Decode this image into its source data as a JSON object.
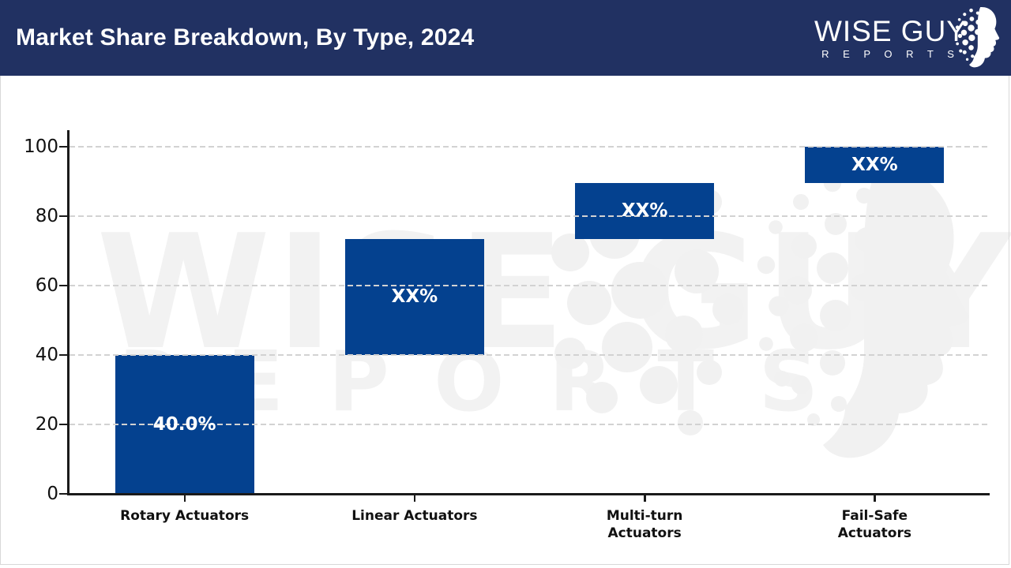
{
  "header": {
    "title": "Market Share Breakdown, By Type, 2024",
    "background_color": "#213162",
    "logo": {
      "name": "WISE GUY",
      "sub": "R E P O R T S"
    }
  },
  "watermark": {
    "line1": "WISE GUY",
    "line2": "R E P O R T S"
  },
  "chart_data": {
    "type": "bar",
    "variant": "waterfall",
    "title": "Market Share Breakdown, By Type, 2024",
    "categories": [
      "Rotary Actuators",
      "Linear Actuators",
      "Multi-turn Actuators",
      "Fail-Safe Actuators"
    ],
    "category_lines": [
      [
        "Rotary Actuators"
      ],
      [
        "Linear Actuators"
      ],
      [
        "Multi-turn",
        "Actuators"
      ],
      [
        "Fail-Safe",
        "Actuators"
      ]
    ],
    "segments": [
      {
        "category": "Rotary Actuators",
        "start": 0,
        "end": 40,
        "value": 40,
        "label": "40.0%"
      },
      {
        "category": "Linear Actuators",
        "start": 40,
        "end": 73.5,
        "value": 33.5,
        "label": "XX%"
      },
      {
        "category": "Multi-turn Actuators",
        "start": 73.5,
        "end": 89.5,
        "value": 16,
        "label": "XX%"
      },
      {
        "category": "Fail-Safe Actuators",
        "start": 89.5,
        "end": 100,
        "value": 10.5,
        "label": "XX%"
      }
    ],
    "xlabel": "",
    "ylabel": "",
    "ylim": [
      0,
      100
    ],
    "yticks": [
      0,
      20,
      40,
      60,
      80,
      100
    ],
    "grid": "horizontal-dashed",
    "legend": "none",
    "bar_color": "#04418f",
    "bar_label_color": "#ffffff",
    "gridline_color": "#d2d2d2",
    "axis_color": "#1a1a1a"
  }
}
